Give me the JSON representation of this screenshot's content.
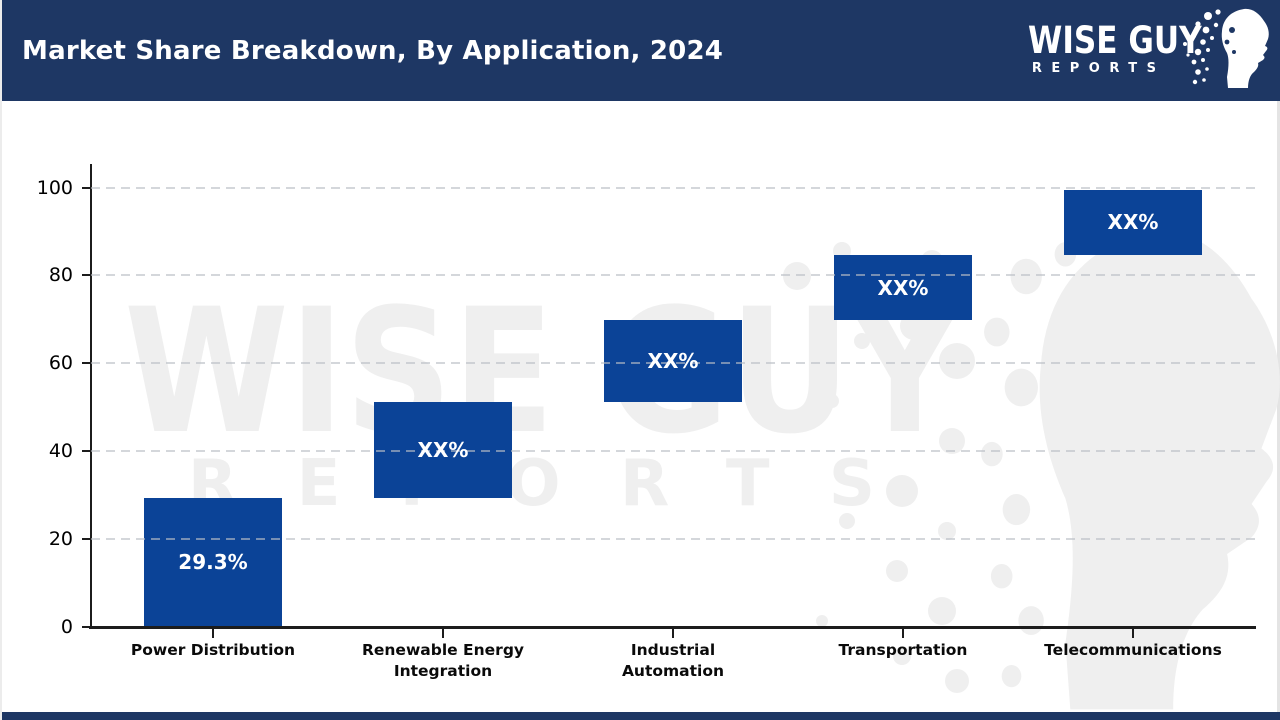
{
  "header": {
    "title": "Market Share Breakdown, By Application, 2024",
    "brand_line1": "WISE GUY",
    "brand_line2": "REPORTS"
  },
  "watermark": {
    "line1": "WISE GUY",
    "line2": "REPORTS"
  },
  "colors": {
    "header_navy": "#1e3764",
    "bar_blue": "#0b4397",
    "watermark_gray": "#efefef",
    "grid_gray": "#d5d5d5",
    "bar_label_white": "#ffffff"
  },
  "chart_data": {
    "type": "bar",
    "subtype": "waterfall",
    "title": "Market Share Breakdown, By Application, 2024",
    "xlabel": "",
    "ylabel": "",
    "ylim": [
      0,
      105
    ],
    "yticks": [
      0,
      20,
      40,
      60,
      80,
      100
    ],
    "grid": "horizontal-dashed",
    "legend": "none",
    "categories": [
      [
        "Power Distribution"
      ],
      [
        "Renewable Energy",
        "Integration"
      ],
      [
        "Industrial",
        "Automation"
      ],
      [
        "Transportation"
      ],
      [
        "Telecommunications"
      ]
    ],
    "segments": [
      {
        "category": "Power Distribution",
        "start": 0,
        "end": 29.3,
        "value_label": "29.3%"
      },
      {
        "category": "Renewable Energy Integration",
        "start": 29.3,
        "end": 51.2,
        "value_label": "XX%"
      },
      {
        "category": "Industrial Automation",
        "start": 51.2,
        "end": 69.8,
        "value_label": "XX%"
      },
      {
        "category": "Transportation",
        "start": 69.8,
        "end": 84.6,
        "value_label": "XX%"
      },
      {
        "category": "Telecommunications",
        "start": 84.6,
        "end": 99.5,
        "value_label": "XX%"
      }
    ]
  }
}
